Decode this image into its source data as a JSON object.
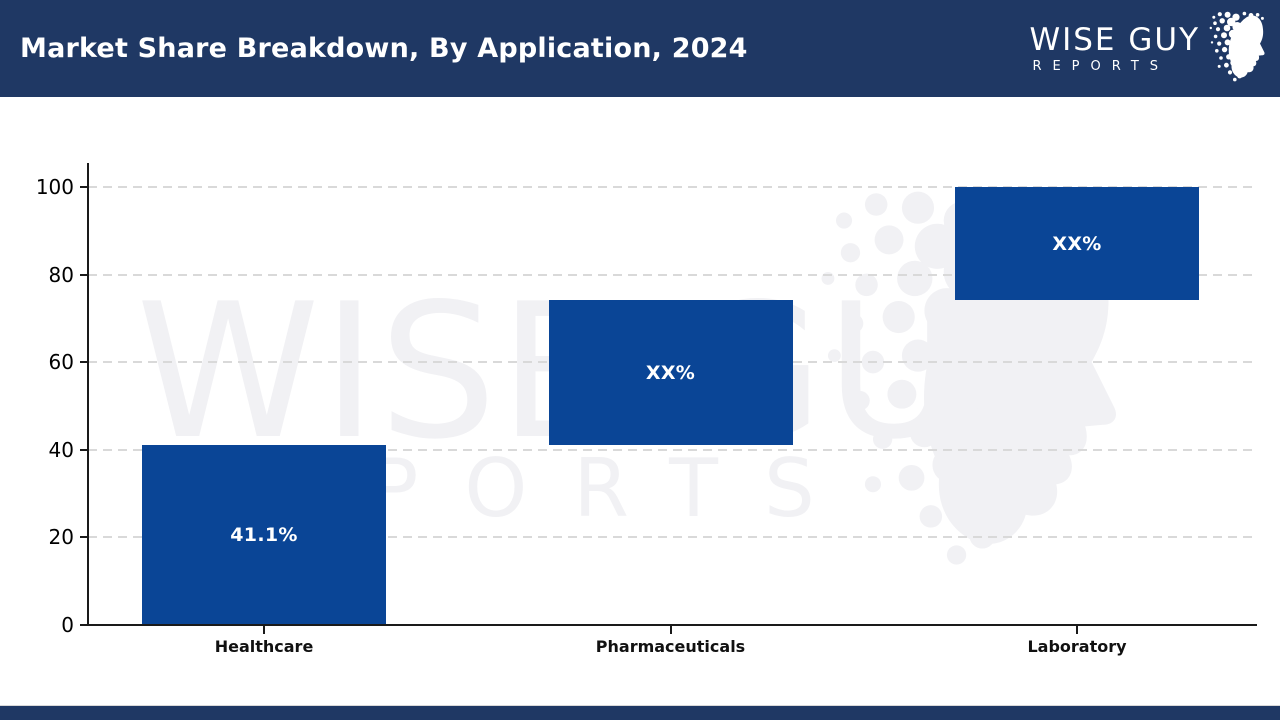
{
  "header": {
    "title": "Market Share Breakdown, By Application, 2024",
    "bg_color": "#1f3864",
    "logo": {
      "line1": "WISE GUY",
      "line2": "REPORTS"
    }
  },
  "watermark": {
    "line1": "WISE GUY",
    "line2": "REPORTS"
  },
  "footer": {
    "bg_color": "#1f3864"
  },
  "chart_data": {
    "type": "bar",
    "subtype": "floating-segment-waterfall",
    "title": "Market Share Breakdown, By Application, 2024",
    "categories": [
      "Healthcare",
      "Pharmaceuticals",
      "Laboratory"
    ],
    "series": [
      {
        "name": "Market share (%)",
        "segments": [
          {
            "category": "Healthcare",
            "start": 0,
            "end": 41.1,
            "label": "41.1%"
          },
          {
            "category": "Pharmaceuticals",
            "start": 41.1,
            "end": 74.1,
            "label": "XX%"
          },
          {
            "category": "Laboratory",
            "start": 74.1,
            "end": 100,
            "label": "XX%"
          }
        ]
      }
    ],
    "xlabel": "",
    "ylabel": "",
    "ylim": [
      0,
      105
    ],
    "yticks": [
      0,
      20,
      40,
      60,
      80,
      100
    ],
    "grid": "dashed-horizontal",
    "legend": "none",
    "bar_color": "#0a4596",
    "bar_label_color": "#ffffff",
    "axis_color": "#1a1a1a",
    "grid_color": "#d9d9d9"
  }
}
